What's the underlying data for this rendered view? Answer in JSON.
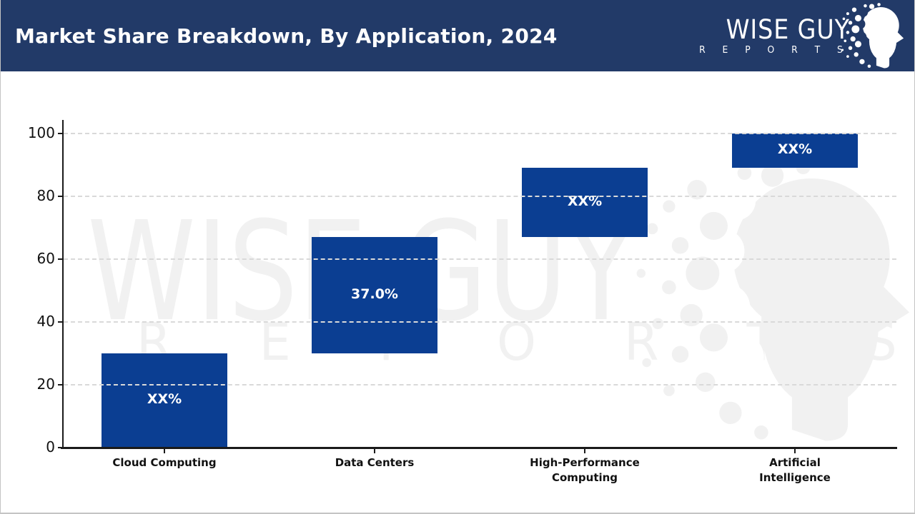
{
  "header": {
    "title": "Market Share Breakdown, By Application, 2024",
    "logo": {
      "name_line": "WISE GUY",
      "sub_line": "R E P O R T S"
    }
  },
  "watermark": {
    "name_line": "WISE GUY",
    "sub_line": "R E P O R T S"
  },
  "chart_data": {
    "type": "bar",
    "variant": "floating-segment-breakdown",
    "title": "Market Share Breakdown, By Application, 2024",
    "categories": [
      "Cloud Computing",
      "Data Centers",
      "High-Performance\nComputing",
      "Artificial\nIntelligence"
    ],
    "segments": [
      {
        "category": "Cloud Computing",
        "start": 0,
        "end": 30,
        "label": "XX%"
      },
      {
        "category": "Data Centers",
        "start": 30,
        "end": 67,
        "label": "37.0%"
      },
      {
        "category": "High-Performance Computing",
        "start": 67,
        "end": 89,
        "label": "XX%"
      },
      {
        "category": "Artificial Intelligence",
        "start": 89,
        "end": 100,
        "label": "XX%"
      }
    ],
    "yticks": [
      0,
      20,
      40,
      60,
      80,
      100
    ],
    "ylim": [
      0,
      105
    ],
    "xlabel": "",
    "ylabel": "",
    "grid": "horizontal dashed, drawn over bars",
    "legend": "none",
    "bar_color": "#0B3E92",
    "bar_label_color": "#FFFFFF"
  },
  "colors": {
    "header_bg": "#223A68",
    "bar": "#0B3E92",
    "grid": "#D9D9D9",
    "axis": "#1A1A1A",
    "watermark": "#F1F1F1"
  }
}
